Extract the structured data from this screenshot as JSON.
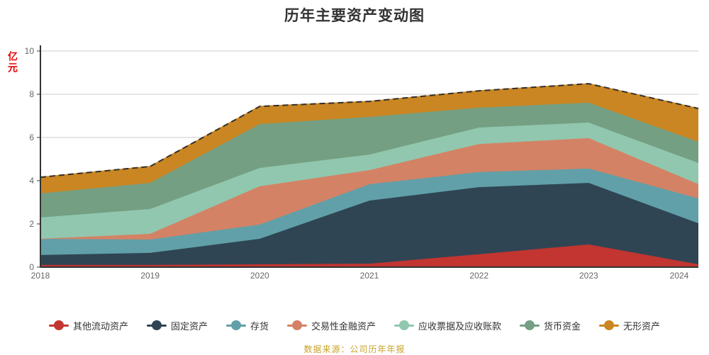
{
  "title": "历年主要资产变动图",
  "footnote": {
    "text": "数据来源：公司历年年报",
    "color": "#c9a227"
  },
  "axis_colors": {
    "axis_line": "#333333",
    "grid_line": "#cccccc",
    "tick_label": "#666666",
    "y_name_color": "#e60000"
  },
  "chart_data": {
    "type": "area",
    "stacked": true,
    "title": "历年主要资产变动图",
    "x": [
      "2018",
      "2019",
      "2020",
      "2021",
      "2022",
      "2023",
      "2024"
    ],
    "xlabel": "",
    "ylabel": "亿元",
    "ylim": [
      0,
      10
    ],
    "yticks": [
      0,
      2,
      4,
      6,
      8,
      10
    ],
    "grid": true,
    "legend_position": "bottom",
    "total_line": {
      "style": "dashed",
      "color": "#2f2f2f"
    },
    "series": [
      {
        "name": "其他流动资产",
        "color": "#c23531",
        "values": [
          0.1,
          0.1,
          0.13,
          0.16,
          0.6,
          1.05,
          0.13
        ]
      },
      {
        "name": "固定资产",
        "color": "#2f4554",
        "values": [
          0.46,
          0.56,
          1.18,
          2.92,
          3.1,
          2.85,
          1.9
        ]
      },
      {
        "name": "存货",
        "color": "#61a0a8",
        "values": [
          0.75,
          0.62,
          0.66,
          0.76,
          0.7,
          0.66,
          1.15
        ]
      },
      {
        "name": "交易性金融资产",
        "color": "#d48265",
        "values": [
          0.0,
          0.26,
          1.77,
          0.65,
          1.3,
          1.41,
          0.66
        ]
      },
      {
        "name": "应收票据及应收账款",
        "color": "#91c7ae",
        "values": [
          0.99,
          1.15,
          0.85,
          0.72,
          0.76,
          0.72,
          0.98
        ]
      },
      {
        "name": "货币资金",
        "color": "#749f83",
        "values": [
          1.11,
          1.21,
          2.03,
          1.74,
          0.92,
          0.92,
          0.98
        ]
      },
      {
        "name": "无形资产",
        "color": "#ca8622",
        "values": [
          0.75,
          0.76,
          0.82,
          0.72,
          0.78,
          0.88,
          1.54
        ]
      }
    ]
  }
}
